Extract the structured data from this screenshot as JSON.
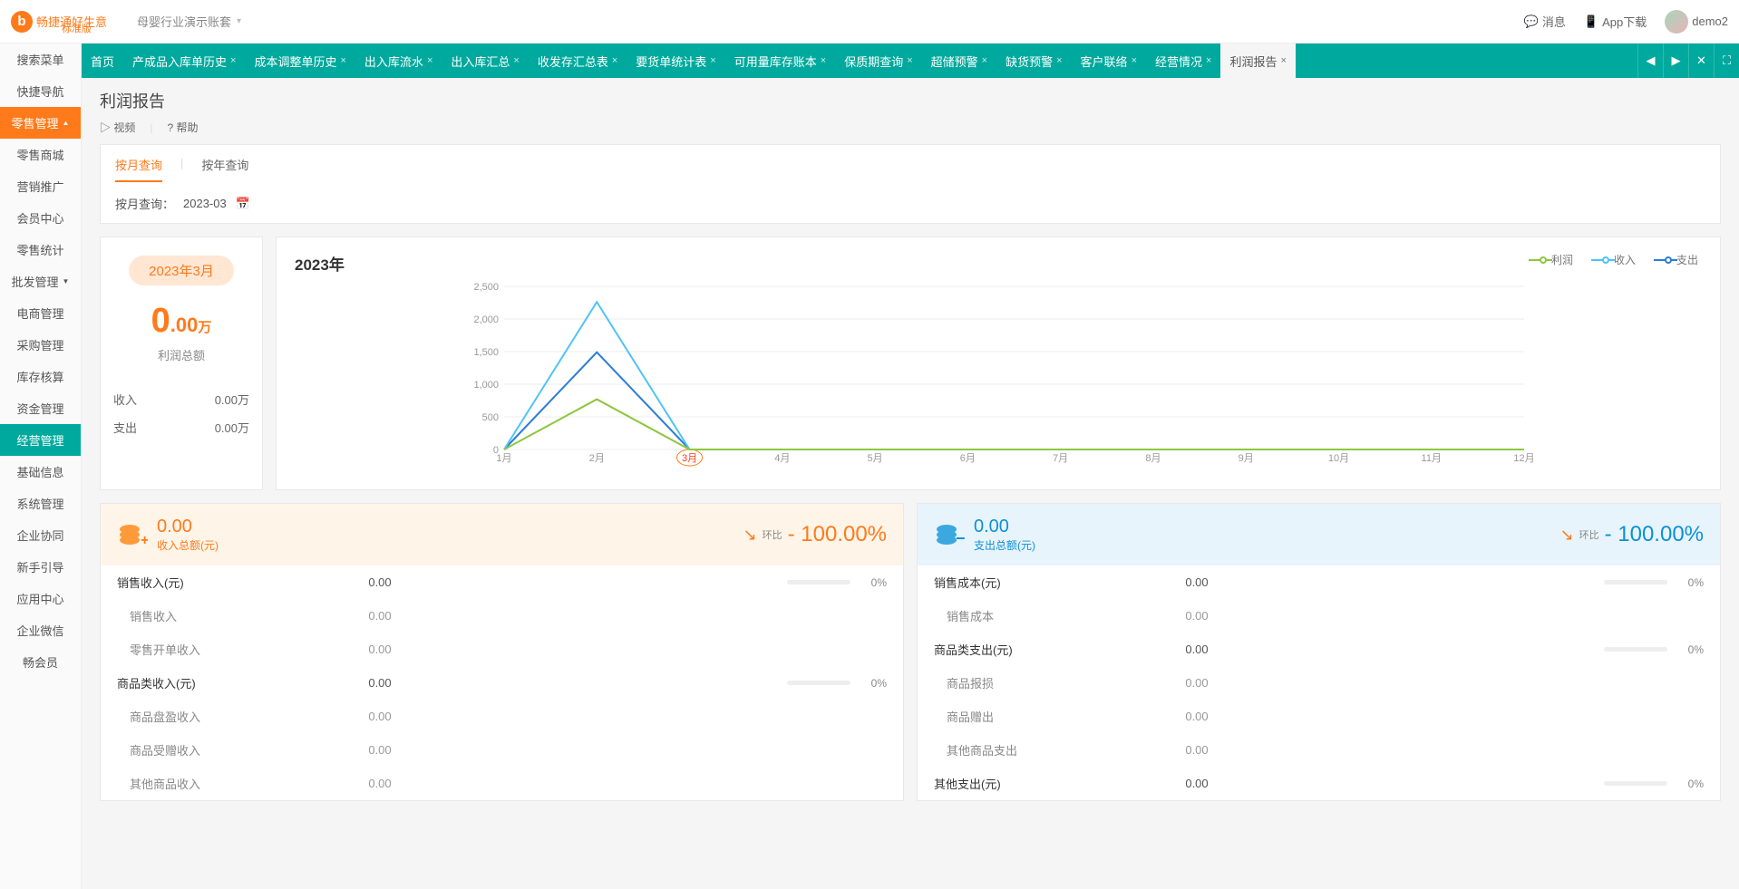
{
  "logo": {
    "brand": "畅捷通好生意",
    "sub": "标准版"
  },
  "account_selector": "母婴行业演示账套",
  "header_links": {
    "msg": "消息",
    "app": "App下载",
    "user": "demo2"
  },
  "tabs": [
    {
      "label": "首页",
      "closable": false
    },
    {
      "label": "产成品入库单历史",
      "closable": true
    },
    {
      "label": "成本调整单历史",
      "closable": true
    },
    {
      "label": "出入库流水",
      "closable": true
    },
    {
      "label": "出入库汇总",
      "closable": true
    },
    {
      "label": "收发存汇总表",
      "closable": true
    },
    {
      "label": "要货单统计表",
      "closable": true
    },
    {
      "label": "可用量库存账本",
      "closable": true
    },
    {
      "label": "保质期查询",
      "closable": true
    },
    {
      "label": "超储预警",
      "closable": true
    },
    {
      "label": "缺货预警",
      "closable": true
    },
    {
      "label": "客户联络",
      "closable": true
    },
    {
      "label": "经营情况",
      "closable": true
    },
    {
      "label": "利润报告",
      "closable": true,
      "active": true
    }
  ],
  "sidebar": [
    {
      "label": "搜索菜单"
    },
    {
      "label": "快捷导航"
    },
    {
      "label": "零售管理",
      "style": "active-orange",
      "expand": "collapse"
    },
    {
      "label": "零售商城"
    },
    {
      "label": "营销推广"
    },
    {
      "label": "会员中心"
    },
    {
      "label": "零售统计"
    },
    {
      "label": "批发管理",
      "expand": "expand"
    },
    {
      "label": "电商管理"
    },
    {
      "label": "采购管理"
    },
    {
      "label": "库存核算"
    },
    {
      "label": "资金管理"
    },
    {
      "label": "经营管理",
      "style": "active-teal"
    },
    {
      "label": "基础信息"
    },
    {
      "label": "系统管理"
    },
    {
      "label": "企业协同"
    },
    {
      "label": "新手引导"
    },
    {
      "label": "应用中心"
    },
    {
      "label": "企业微信"
    },
    {
      "label": "畅会员"
    }
  ],
  "page": {
    "title": "利润报告",
    "toolbar": {
      "video": "视频",
      "help": "帮助"
    },
    "subtabs": {
      "month": "按月查询",
      "year": "按年查询"
    },
    "filter": {
      "label": "按月查询：",
      "value": "2023-03"
    }
  },
  "summary": {
    "month_pill": "2023年3月",
    "big_int": "0",
    "big_dec": ".00",
    "big_unit": "万",
    "profit_label": "利润总额",
    "income_label": "收入",
    "income_val": "0.00万",
    "expense_label": "支出",
    "expense_val": "0.00万"
  },
  "chart": {
    "title": "2023年",
    "legend": {
      "profit": "利润",
      "income": "收入",
      "expense": "支出"
    },
    "colors": {
      "profit": "#8dc63f",
      "income": "#4fc3f7",
      "expense": "#2b7dd6",
      "grid": "#eeeeee",
      "axis": "#ccc",
      "text": "#999"
    },
    "y_ticks": [
      "0",
      "500",
      "1,000",
      "1,500",
      "2,000",
      "2,500"
    ],
    "y_max": 2500,
    "x_labels": [
      "1月",
      "2月",
      "3月",
      "4月",
      "5月",
      "6月",
      "7月",
      "8月",
      "9月",
      "10月",
      "11月",
      "12月"
    ],
    "highlight_x": 2,
    "series": {
      "profit": [
        0,
        770,
        0,
        0,
        0,
        0,
        0,
        0,
        0,
        0,
        0,
        0
      ],
      "income": [
        0,
        2260,
        0,
        0,
        0,
        0,
        0,
        0,
        0,
        0,
        0,
        0
      ],
      "expense": [
        0,
        1490,
        0,
        0,
        0,
        0,
        0,
        0,
        0,
        0,
        0,
        0
      ]
    }
  },
  "income_table": {
    "head_val": "0.00",
    "head_label": "收入总额(元)",
    "hb": "环比",
    "pct": "- 100.00%",
    "rows": [
      {
        "name": "销售收入(元)",
        "val": "0.00",
        "pct": "0%",
        "bar": true
      },
      {
        "name": "销售收入",
        "val": "0.00",
        "sub": true
      },
      {
        "name": "零售开单收入",
        "val": "0.00",
        "sub": true
      },
      {
        "name": "商品类收入(元)",
        "val": "0.00",
        "pct": "0%",
        "bar": true
      },
      {
        "name": "商品盘盈收入",
        "val": "0.00",
        "sub": true
      },
      {
        "name": "商品受赠收入",
        "val": "0.00",
        "sub": true
      },
      {
        "name": "其他商品收入",
        "val": "0.00",
        "sub": true
      }
    ]
  },
  "expense_table": {
    "head_val": "0.00",
    "head_label": "支出总额(元)",
    "hb": "环比",
    "pct": "- 100.00%",
    "rows": [
      {
        "name": "销售成本(元)",
        "val": "0.00",
        "pct": "0%",
        "bar": true
      },
      {
        "name": "销售成本",
        "val": "0.00",
        "sub": true
      },
      {
        "name": "商品类支出(元)",
        "val": "0.00",
        "pct": "0%",
        "bar": true
      },
      {
        "name": "商品报损",
        "val": "0.00",
        "sub": true
      },
      {
        "name": "商品赠出",
        "val": "0.00",
        "sub": true
      },
      {
        "name": "其他商品支出",
        "val": "0.00",
        "sub": true
      },
      {
        "name": "其他支出(元)",
        "val": "0.00",
        "pct": "0%",
        "bar": true
      }
    ]
  }
}
